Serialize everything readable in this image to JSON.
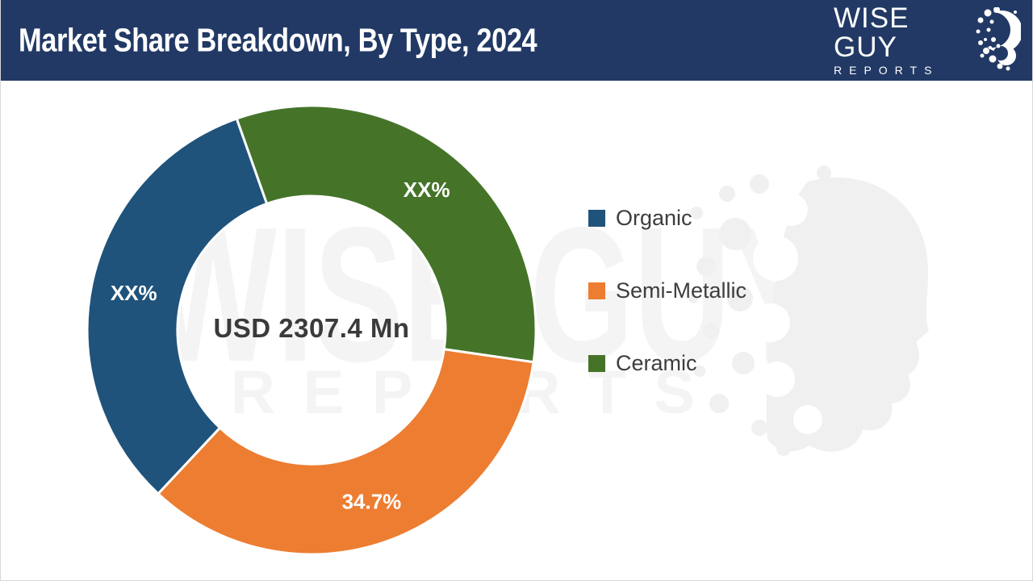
{
  "header": {
    "title": "Market Share Breakdown, By Type, 2024",
    "logo": {
      "line1": "WISE GUY",
      "line2": "REPORTS"
    }
  },
  "watermark": {
    "line1": "WISE GUY",
    "line2": "REPORTS"
  },
  "chart_data": {
    "type": "donut",
    "title": "Market Share Breakdown, By Type, 2024",
    "center_label": "USD 2307.4 Mn",
    "total_value_usd_mn": 2307.4,
    "start_angle_deg": -19.5,
    "legend_position": "right",
    "segments": [
      {
        "name": "Ceramic",
        "share_pct": 32.7,
        "data_label": "XX%",
        "color": "#457429"
      },
      {
        "name": "Semi-Metallic",
        "share_pct": 34.7,
        "data_label": "34.7%",
        "color": "#ED7D31"
      },
      {
        "name": "Organic",
        "share_pct": 32.6,
        "data_label": "XX%",
        "color": "#1F537B"
      }
    ]
  },
  "legend": {
    "items": [
      {
        "label": "Organic",
        "color": "#1F537B"
      },
      {
        "label": "Semi-Metallic",
        "color": "#ED7D31"
      },
      {
        "label": "Ceramic",
        "color": "#457429"
      }
    ]
  },
  "colors": {
    "header_bg": "#223965",
    "canvas_border": "#d8d8d8",
    "watermark_text": "#f4f4f4",
    "watermark_face": "#f0f0f0",
    "center_text": "#3a3a3a"
  }
}
